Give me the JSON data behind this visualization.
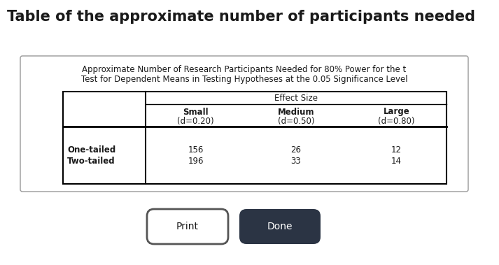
{
  "title": "Table of the approximate number of participants needed",
  "title_fontsize": 15,
  "title_color": "#1a1a1a",
  "subtitle_line1": "Approximate Number of Research Participants Needed for 80% Power for the t",
  "subtitle_line2": "Test for Dependent Means in Testing Hypotheses at the 0.05 Significance Level",
  "subtitle_fontsize": 8.5,
  "effect_size_label": "Effect Size",
  "col_headers_line1": [
    "Small",
    "Medium",
    "Large"
  ],
  "col_headers_line2": [
    "(d=0.20)",
    "(d=0.50)",
    "(d=0.80)"
  ],
  "row_headers": [
    "One-tailed",
    "Two-tailed"
  ],
  "data": [
    [
      156,
      26,
      12
    ],
    [
      196,
      33,
      14
    ]
  ],
  "background_color": "#ffffff",
  "box_edge_color": "#999999",
  "table_edge_color": "#000000",
  "print_btn_text": "Print",
  "done_btn_text": "Done",
  "done_btn_bg": "#2b3444",
  "font_family": "DejaVu Sans"
}
